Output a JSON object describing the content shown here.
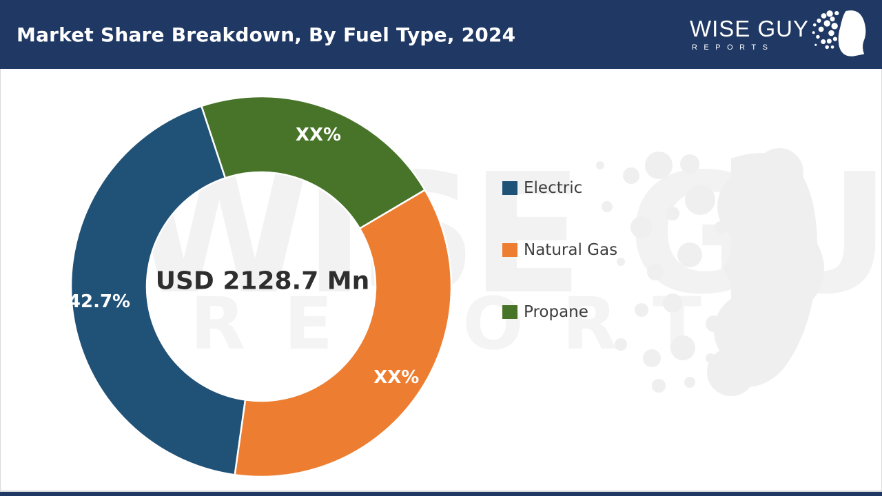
{
  "header": {
    "title": "Market Share Breakdown, By Fuel Type, 2024",
    "brand": {
      "line1": "WISE GUY",
      "line2": "REPORTS",
      "icon": "dot-face-logo"
    }
  },
  "chart_data": {
    "type": "donut",
    "title": "Market Share Breakdown, By Fuel Type, 2024",
    "center_label": "USD 2128.7 Mn",
    "slices": [
      {
        "name": "Electric",
        "display_label": "42.7%",
        "value_pct": 42.7,
        "color": "#205177"
      },
      {
        "name": "Natural Gas",
        "display_label": "XX%",
        "value_pct": 35.7,
        "color": "#ED7D31"
      },
      {
        "name": "Propane",
        "display_label": "XX%",
        "value_pct": 21.6,
        "color": "#477428"
      }
    ],
    "draw_order": [
      2,
      1,
      0
    ],
    "start_angle_deg": -18.3,
    "legend_position": "right",
    "colors": {
      "header_navy": "#1F3864",
      "label_text": "#ffffff",
      "center_text": "#2e2e2e"
    }
  },
  "watermark": {
    "line1": "WISE GUY",
    "line2": "REPORTS",
    "icon": "dot-face-watermark"
  }
}
